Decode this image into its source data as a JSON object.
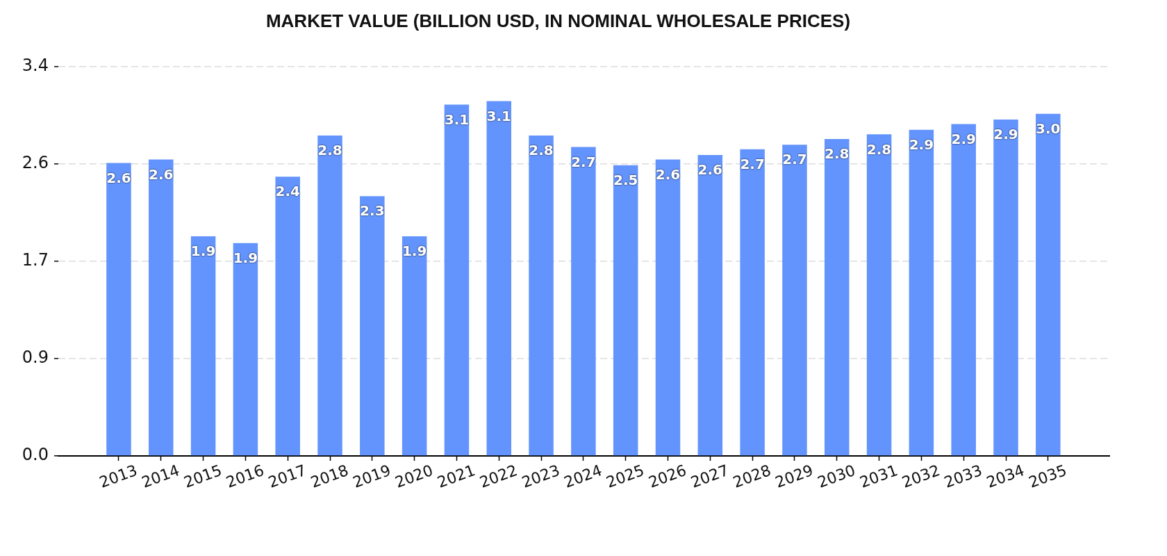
{
  "chart_data": {
    "type": "bar",
    "title": "MARKET VALUE (BILLION USD, IN NOMINAL WHOLESALE PRICES)",
    "categories": [
      "2013",
      "2014",
      "2015",
      "2016",
      "2017",
      "2018",
      "2019",
      "2020",
      "2021",
      "2022",
      "2023",
      "2024",
      "2025",
      "2026",
      "2027",
      "2028",
      "2029",
      "2030",
      "2031",
      "2032",
      "2033",
      "2034",
      "2035"
    ],
    "values": [
      2.56,
      2.59,
      1.92,
      1.86,
      2.44,
      2.8,
      2.27,
      1.92,
      3.07,
      3.1,
      2.8,
      2.7,
      2.54,
      2.59,
      2.63,
      2.68,
      2.72,
      2.77,
      2.81,
      2.85,
      2.9,
      2.94,
      2.99
    ],
    "value_labels": [
      "2.6",
      "2.6",
      "1.9",
      "1.9",
      "2.4",
      "2.8",
      "2.3",
      "1.9",
      "3.1",
      "3.1",
      "2.8",
      "2.7",
      "2.5",
      "2.6",
      "2.6",
      "2.7",
      "2.7",
      "2.8",
      "2.8",
      "2.9",
      "2.9",
      "2.9",
      "3.0"
    ],
    "color": "#6394fd",
    "ylim": [
      0,
      3.4
    ],
    "yticks": [
      {
        "value": 0,
        "label": "0.0"
      },
      {
        "value": 0.85,
        "label": "0.9"
      },
      1.7,
      {
        "value": 2.55,
        "label": "2.6"
      },
      3.4
    ],
    "grid": "y"
  }
}
